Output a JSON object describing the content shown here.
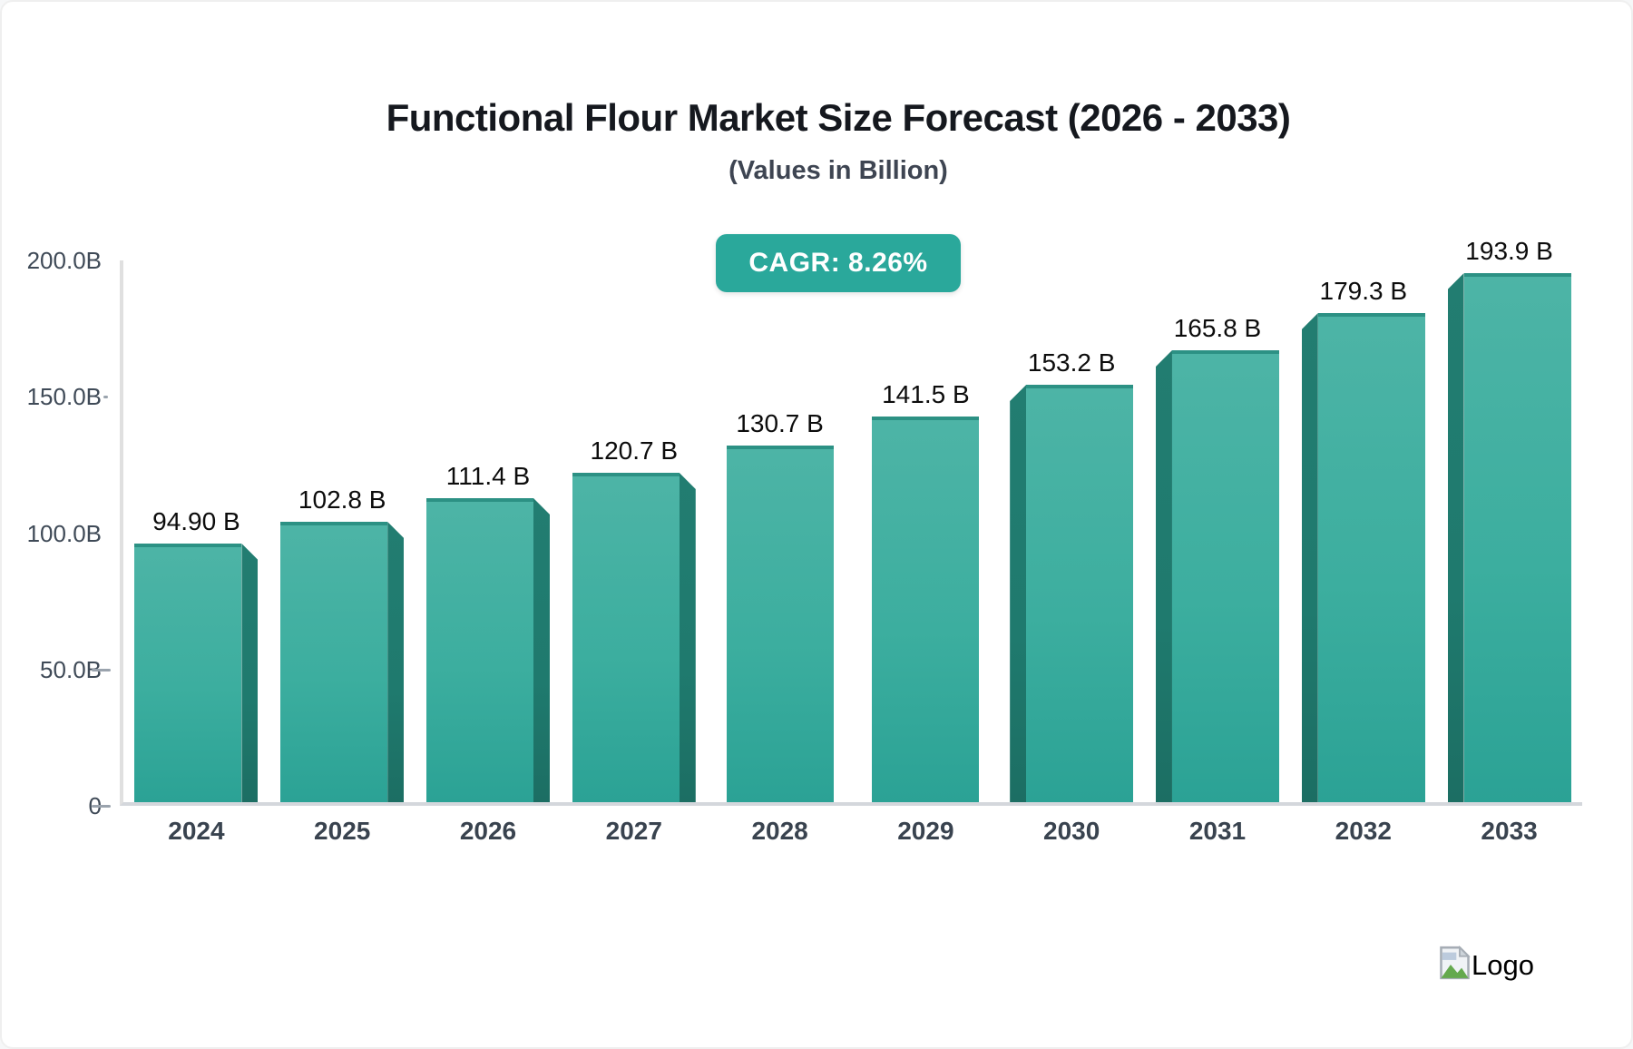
{
  "header": {
    "title": "Functional Flour Market Size Forecast (2026 - 2033)",
    "subtitle": "(Values in Billion)",
    "cagr_badge": "CAGR: 8.26%"
  },
  "chart_data": {
    "type": "bar",
    "title": "Functional Flour Market Size Forecast (2026 - 2033)",
    "subtitle": "(Values in Billion)",
    "cagr_annotation": "CAGR: 8.26%",
    "xlabel": "",
    "ylabel": "",
    "ylim": [
      0,
      200
    ],
    "grid": false,
    "legend": "none",
    "categories": [
      "2024",
      "2025",
      "2026",
      "2027",
      "2028",
      "2029",
      "2030",
      "2031",
      "2032",
      "2033"
    ],
    "values": [
      94.9,
      102.8,
      111.4,
      120.7,
      130.7,
      141.5,
      153.2,
      165.8,
      179.3,
      193.9
    ],
    "value_labels": [
      "94.90 B",
      "102.8 B",
      "111.4 B",
      "120.7 B",
      "130.7 B",
      "141.5 B",
      "153.2 B",
      "165.8 B",
      "179.3 B",
      "193.9 B"
    ],
    "y_axis": {
      "tick_labels": [
        "200.0B",
        "150.0B",
        "100.0B",
        "50.0B",
        "0"
      ],
      "tick_styles": [
        "none",
        "dot",
        "none",
        "dash",
        "dash"
      ]
    },
    "bar_sides": [
      "right",
      "right",
      "right",
      "right",
      "none",
      "none",
      "left",
      "left",
      "left",
      "left"
    ]
  },
  "colors": {
    "bar_face_top": "#4db4a6",
    "bar_face_mid": "#3cae9f",
    "bar_face_bottom": "#2ba295",
    "bar_side": "#1f7a6e",
    "bar_top_edge": "#2c9184",
    "badge_bg": "#2aa89b",
    "badge_text": "#ffffff",
    "axis_line": "#e0e0e0",
    "baseline": "#d4d7dc",
    "title_text": "#15181e",
    "subtitle_text": "#3e4552",
    "axis_label": "#3f4a57",
    "year_label": "#39434f",
    "value_label": "#0c0c0c"
  },
  "footer": {
    "logo_text": "Logo"
  }
}
